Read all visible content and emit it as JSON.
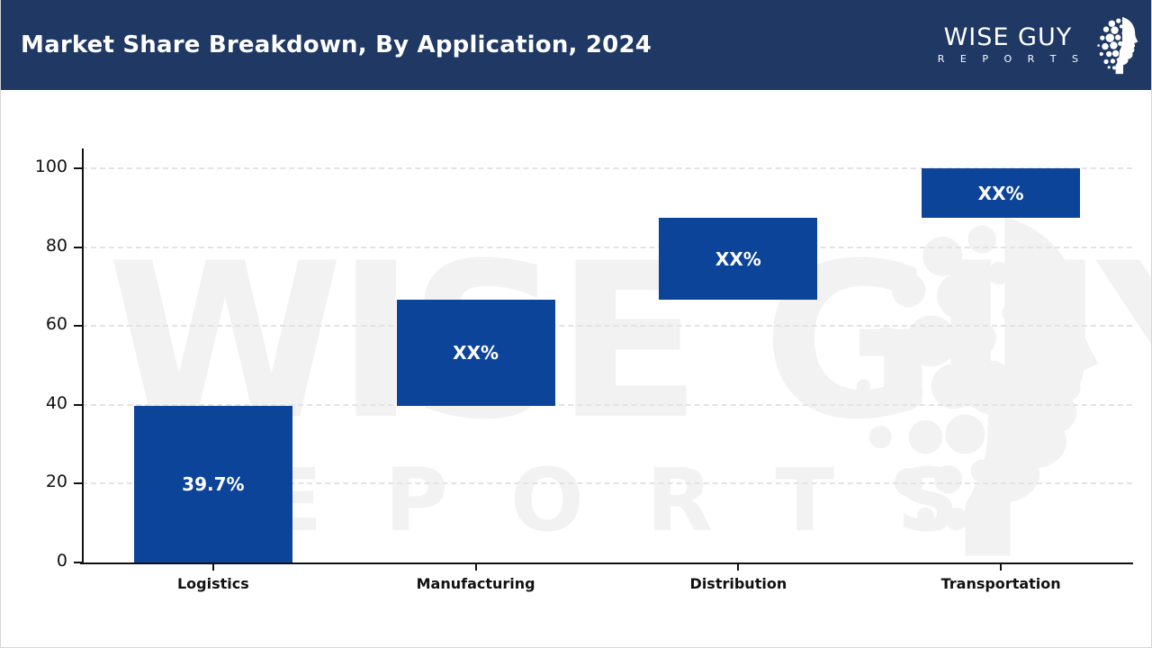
{
  "header": {
    "title": "Market Share Breakdown, By Application, 2024",
    "bg_color": "#1f3864",
    "logo": {
      "line1": "WISE GUY",
      "line2": "R E P O R T S"
    }
  },
  "watermark": {
    "line1": "WISE GUY",
    "line2": "R E P O R T S"
  },
  "chart_data": {
    "type": "bar",
    "subtype": "waterfall",
    "title": "Market Share Breakdown, By Application, 2024",
    "categories": [
      "Logistics",
      "Manufacturing",
      "Distribution",
      "Transportation"
    ],
    "segments": [
      {
        "category": "Logistics",
        "start": 0,
        "end": 39.7,
        "label": "39.7%"
      },
      {
        "category": "Manufacturing",
        "start": 39.7,
        "end": 66.6,
        "label": "XX%"
      },
      {
        "category": "Distribution",
        "start": 66.6,
        "end": 87.4,
        "label": "XX%"
      },
      {
        "category": "Transportation",
        "start": 87.4,
        "end": 100,
        "label": "XX%"
      }
    ],
    "yticks": [
      0,
      20,
      40,
      60,
      80,
      100
    ],
    "ylim": [
      0,
      100
    ],
    "grid": "horizontal dashed",
    "legend": "none",
    "bar_color": "#0c4499",
    "bar_label_color": "#ffffff",
    "axis_color": "#111111",
    "gridline_color": "#e3e3e3"
  }
}
